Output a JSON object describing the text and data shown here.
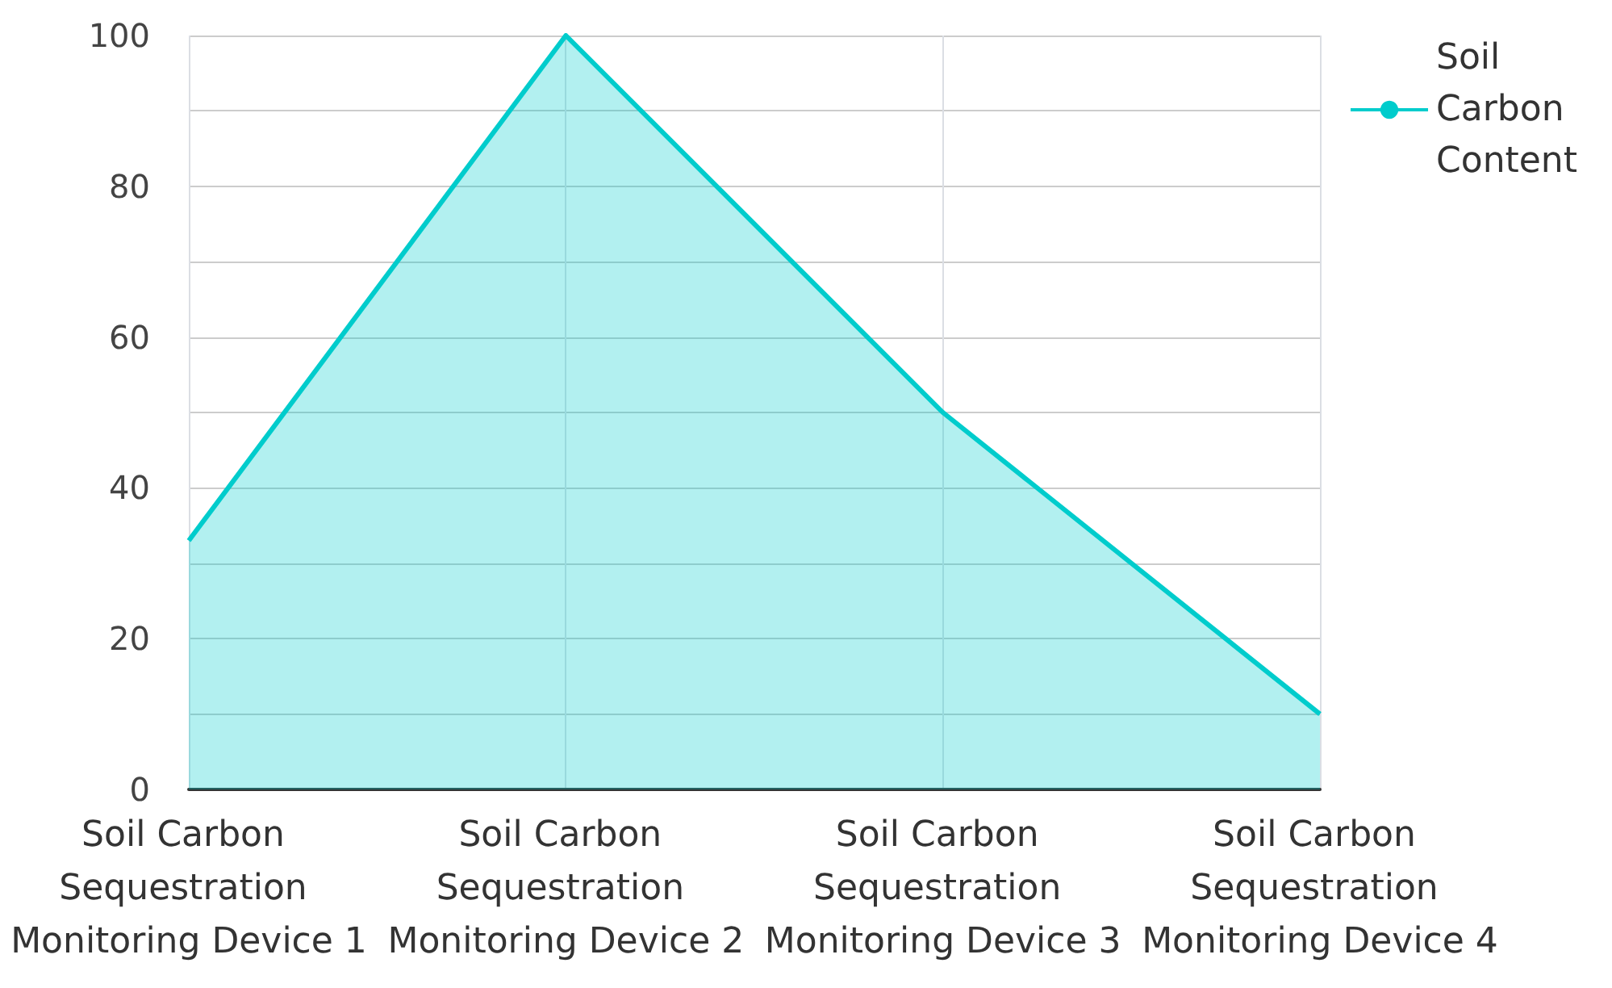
{
  "chart_data": {
    "type": "area",
    "categories": [
      "Soil Carbon Sequestration Monitoring Device 1",
      "Soil Carbon Sequestration Monitoring Device 2",
      "Soil Carbon Sequestration Monitoring Device 3",
      "Soil Carbon Sequestration Monitoring Device 4"
    ],
    "series": [
      {
        "name": "Soil Carbon Content",
        "color": "#00cccc",
        "values": [
          33,
          100,
          50,
          10
        ]
      }
    ],
    "ylim": [
      0,
      100
    ],
    "yticks": [
      0,
      {
        "value": 10,
        "label": null
      },
      20,
      {
        "value": 30,
        "label": null
      },
      40,
      {
        "value": 50,
        "label": null
      },
      60,
      {
        "value": 70,
        "label": null
      },
      80,
      {
        "value": 90,
        "label": null
      },
      100
    ],
    "grid": true,
    "legend": "top right",
    "marker": "none"
  }
}
